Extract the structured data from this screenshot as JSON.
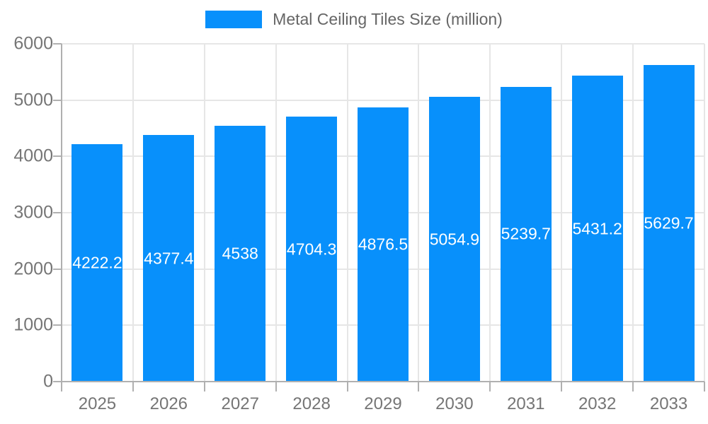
{
  "legend": {
    "label": "Metal Ceiling Tiles Size (million)"
  },
  "colors": {
    "bar": "#0890fb",
    "grid": "#e6e6e6",
    "axis": "#b0b0b0",
    "axis_text": "#757575",
    "legend_text": "#666666",
    "bar_label": "#ffffff"
  },
  "chart_data": {
    "type": "bar",
    "title": "Metal Ceiling Tiles Size (million)",
    "categories": [
      "2025",
      "2026",
      "2027",
      "2028",
      "2029",
      "2030",
      "2031",
      "2032",
      "2033"
    ],
    "values": [
      4222.2,
      4377.4,
      4538,
      4704.3,
      4876.5,
      5054.9,
      5239.7,
      5431.2,
      5629.7
    ],
    "value_labels": [
      "4222.2",
      "4377.4",
      "4538",
      "4704.3",
      "4876.5",
      "5054.9",
      "5239.7",
      "5431.2",
      "5629.7"
    ],
    "xlabel": "",
    "ylabel": "",
    "ylim": [
      0,
      6000
    ],
    "y_ticks": [
      0,
      1000,
      2000,
      3000,
      4000,
      5000,
      6000
    ],
    "y_tick_labels": [
      "0",
      "1000",
      "2000",
      "3000",
      "4000",
      "5000",
      "6000"
    ],
    "grid": true,
    "legend_position": "top",
    "value_label_position": "center-of-bar"
  }
}
